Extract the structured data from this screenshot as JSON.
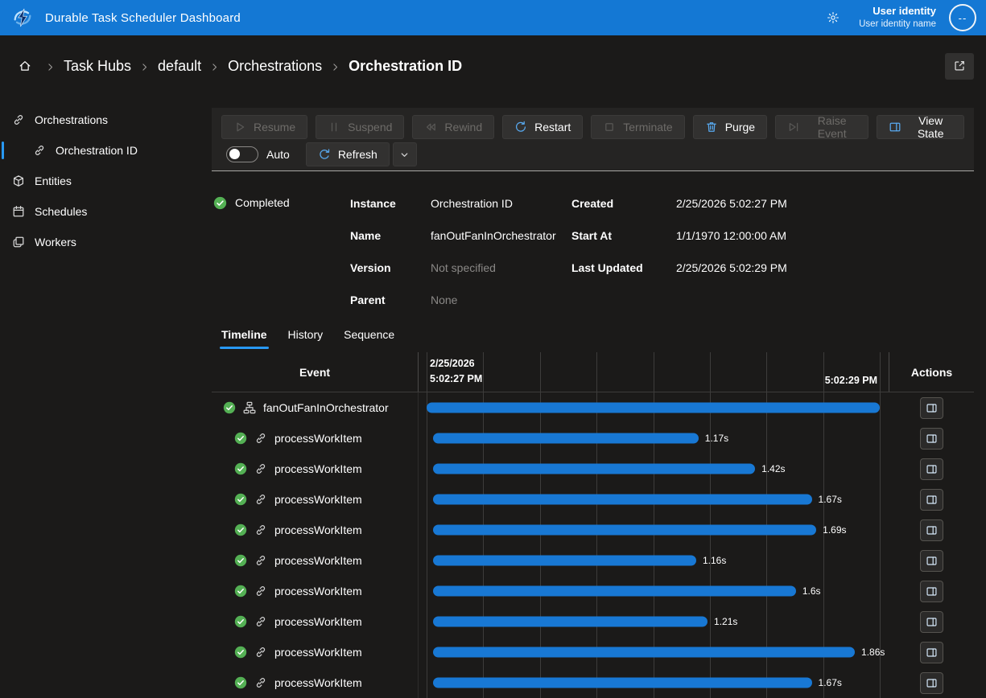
{
  "topbar": {
    "title": "Durable Task Scheduler Dashboard",
    "user_identity": "User identity",
    "user_identity_name": "User identity name",
    "avatar_text": "--",
    "accent_color": "#1478d4"
  },
  "breadcrumb": {
    "items": [
      "Task Hubs",
      "default",
      "Orchestrations",
      "Orchestration ID"
    ]
  },
  "sidebar": {
    "items": [
      {
        "label": "Orchestrations",
        "icon": "link-icon",
        "nested": false,
        "selected": false
      },
      {
        "label": "Orchestration ID",
        "icon": "link-icon",
        "nested": true,
        "selected": true
      },
      {
        "label": "Entities",
        "icon": "cube-icon",
        "nested": false,
        "selected": false
      },
      {
        "label": "Schedules",
        "icon": "calendar-icon",
        "nested": false,
        "selected": false
      },
      {
        "label": "Workers",
        "icon": "layers-icon",
        "nested": false,
        "selected": false
      }
    ]
  },
  "toolbar": {
    "buttons": [
      {
        "label": "Resume",
        "icon": "play-icon",
        "enabled": false
      },
      {
        "label": "Suspend",
        "icon": "pause-icon",
        "enabled": false
      },
      {
        "label": "Rewind",
        "icon": "rewind-icon",
        "enabled": false
      },
      {
        "label": "Restart",
        "icon": "restart-icon",
        "enabled": true
      },
      {
        "label": "Terminate",
        "icon": "stop-icon",
        "enabled": false
      },
      {
        "label": "Purge",
        "icon": "trash-icon",
        "enabled": true
      },
      {
        "label": "Raise Event",
        "icon": "raise-event-icon",
        "enabled": false
      },
      {
        "label": "View State",
        "icon": "view-state-icon",
        "enabled": true
      }
    ],
    "auto_toggle": {
      "label": "Auto",
      "on": false
    },
    "refresh": {
      "label": "Refresh",
      "icon": "refresh-icon"
    }
  },
  "details": {
    "status": {
      "label": "Completed",
      "icon": "check-circle-icon",
      "color": "#54b054"
    },
    "left_fields": [
      {
        "label": "Instance",
        "value": "Orchestration ID",
        "muted": false
      },
      {
        "label": "Name",
        "value": "fanOutFanInOrchestrator",
        "muted": false
      },
      {
        "label": "Version",
        "value": "Not specified",
        "muted": true
      },
      {
        "label": "Parent",
        "value": "None",
        "muted": true
      }
    ],
    "right_fields": [
      {
        "label": "Created",
        "value": "2/25/2026 5:02:27 PM"
      },
      {
        "label": "Start At",
        "value": "1/1/1970 12:00:00 AM"
      },
      {
        "label": "Last Updated",
        "value": "2/25/2026 5:02:29 PM"
      }
    ]
  },
  "tabs": [
    {
      "label": "Timeline",
      "active": true
    },
    {
      "label": "History",
      "active": false
    },
    {
      "label": "Sequence",
      "active": false
    }
  ],
  "timeline": {
    "event_header": "Event",
    "actions_header": "Actions",
    "axis": {
      "start_date": "2/25/2026",
      "start_time": "5:02:27 PM",
      "end_time": "5:02:29 PM",
      "total_seconds": 2,
      "divisions": 8
    },
    "bar_color": "#1878d4",
    "rows": [
      {
        "name": "fanOutFanInOrchestrator",
        "icon": "orchestrator-icon",
        "status_icon": "check-circle-icon",
        "status": "Completed",
        "start": 0,
        "duration": 2.0,
        "duration_label": ""
      },
      {
        "name": "processWorkItem",
        "icon": "activity-icon",
        "status_icon": "check-circle-icon",
        "status": "Completed",
        "start": 0.03,
        "duration": 1.17,
        "duration_label": "1.17s"
      },
      {
        "name": "processWorkItem",
        "icon": "activity-icon",
        "status_icon": "check-circle-icon",
        "status": "Completed",
        "start": 0.03,
        "duration": 1.42,
        "duration_label": "1.42s"
      },
      {
        "name": "processWorkItem",
        "icon": "activity-icon",
        "status_icon": "check-circle-icon",
        "status": "Completed",
        "start": 0.03,
        "duration": 1.67,
        "duration_label": "1.67s"
      },
      {
        "name": "processWorkItem",
        "icon": "activity-icon",
        "status_icon": "check-circle-icon",
        "status": "Completed",
        "start": 0.03,
        "duration": 1.69,
        "duration_label": "1.69s"
      },
      {
        "name": "processWorkItem",
        "icon": "activity-icon",
        "status_icon": "check-circle-icon",
        "status": "Completed",
        "start": 0.03,
        "duration": 1.16,
        "duration_label": "1.16s"
      },
      {
        "name": "processWorkItem",
        "icon": "activity-icon",
        "status_icon": "check-circle-icon",
        "status": "Completed",
        "start": 0.03,
        "duration": 1.6,
        "duration_label": "1.6s"
      },
      {
        "name": "processWorkItem",
        "icon": "activity-icon",
        "status_icon": "check-circle-icon",
        "status": "Completed",
        "start": 0.03,
        "duration": 1.21,
        "duration_label": "1.21s"
      },
      {
        "name": "processWorkItem",
        "icon": "activity-icon",
        "status_icon": "check-circle-icon",
        "status": "Completed",
        "start": 0.03,
        "duration": 1.86,
        "duration_label": "1.86s"
      },
      {
        "name": "processWorkItem",
        "icon": "activity-icon",
        "status_icon": "check-circle-icon",
        "status": "Completed",
        "start": 0.03,
        "duration": 1.67,
        "duration_label": "1.67s"
      }
    ]
  }
}
